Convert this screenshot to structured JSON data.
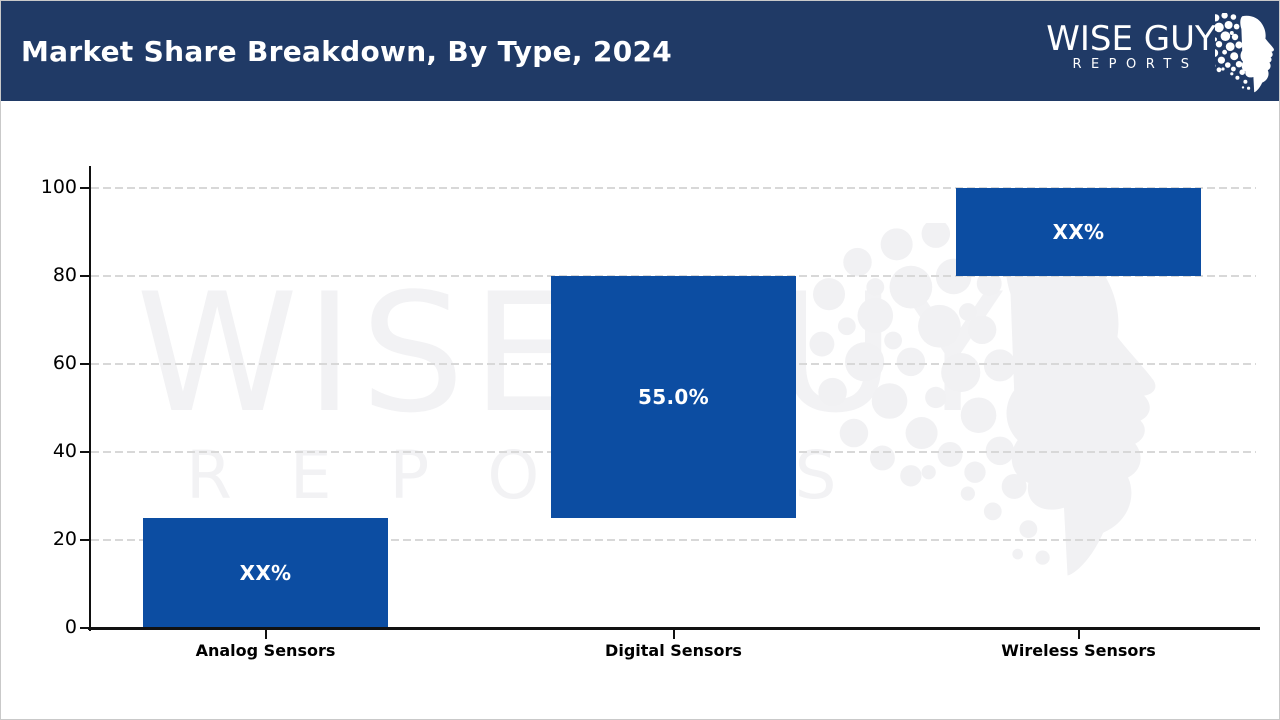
{
  "header": {
    "title": "Market Share Breakdown, By Type, 2024",
    "brand": {
      "name_top": "WISE GUY",
      "name_bottom": "REPORTS"
    }
  },
  "watermark": {
    "text_top": "WISE GUY",
    "text_bottom": "REPORTS"
  },
  "chart_data": {
    "type": "bar",
    "variant": "stacked-waterfall",
    "title": "Market Share Breakdown, By Type, 2024",
    "categories": [
      "Analog Sensors",
      "Digital Sensors",
      "Wireless Sensors"
    ],
    "series": [
      {
        "name": "Analog Sensors",
        "start": 0,
        "end": 25,
        "label": "XX%"
      },
      {
        "name": "Digital Sensors",
        "start": 25,
        "end": 80,
        "label": "55.0%"
      },
      {
        "name": "Wireless Sensors",
        "start": 80,
        "end": 100,
        "label": "XX%"
      }
    ],
    "y_ticks": [
      0,
      20,
      40,
      60,
      80,
      100
    ],
    "ylim": [
      0,
      105
    ],
    "xlabel": "",
    "ylabel": "",
    "grid": "horizontal-dashed",
    "legend": "none",
    "colors": {
      "header_bg": "#203a66",
      "bar": "#0c4da2",
      "bar_label_text": "#ffffff",
      "grid_line": "#d8d8d8",
      "axis_line": "#111111",
      "watermark": "#f1f1f3"
    }
  }
}
